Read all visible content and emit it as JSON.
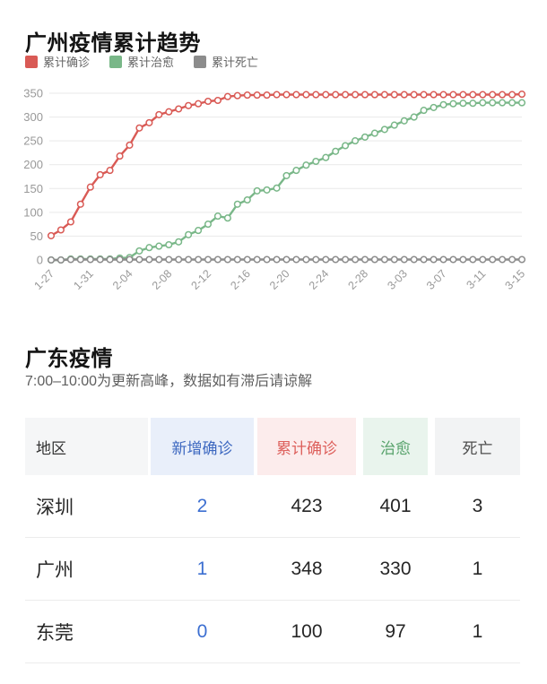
{
  "trend_section": {
    "title": "广州疫情累计趋势",
    "legend": [
      {
        "label": "累计确诊",
        "color": "#d95a55"
      },
      {
        "label": "累计治愈",
        "color": "#79b788"
      },
      {
        "label": "累计死亡",
        "color": "#8c8c8c"
      }
    ]
  },
  "chart_data": {
    "type": "line",
    "title": "广州疫情累计趋势",
    "marker": "hollow-circle",
    "grid": true,
    "legend_position": "top-left",
    "ylim": [
      0,
      350
    ],
    "y_ticks": [
      0,
      50,
      100,
      150,
      200,
      250,
      300,
      350
    ],
    "x_tick_every": 4,
    "x": [
      "1-27",
      "1-28",
      "1-29",
      "1-30",
      "1-31",
      "2-01",
      "2-02",
      "2-03",
      "2-04",
      "2-05",
      "2-06",
      "2-07",
      "2-08",
      "2-09",
      "2-10",
      "2-11",
      "2-12",
      "2-13",
      "2-14",
      "2-15",
      "2-16",
      "2-17",
      "2-18",
      "2-19",
      "2-20",
      "2-21",
      "2-22",
      "2-23",
      "2-24",
      "2-25",
      "2-26",
      "2-27",
      "2-28",
      "2-29",
      "3-01",
      "3-02",
      "3-03",
      "3-04",
      "3-05",
      "3-06",
      "3-07",
      "3-08",
      "3-09",
      "3-10",
      "3-11",
      "3-12",
      "3-13",
      "3-14",
      "3-15"
    ],
    "series": [
      {
        "name": "累计确诊",
        "color": "#d95a55",
        "values": [
          51,
          63,
          80,
          117,
          153,
          179,
          188,
          218,
          241,
          277,
          288,
          305,
          311,
          317,
          324,
          328,
          333,
          335,
          343,
          345,
          346,
          346,
          346,
          347,
          347,
          347,
          347,
          347,
          347,
          347,
          347,
          347,
          347,
          347,
          347,
          347,
          347,
          347,
          347,
          347,
          347,
          347,
          347,
          347,
          347,
          347,
          347,
          347,
          348
        ]
      },
      {
        "name": "累计治愈",
        "color": "#79b788",
        "values": [
          0,
          0,
          2,
          2,
          2,
          2,
          2,
          4,
          5,
          19,
          26,
          29,
          32,
          38,
          53,
          62,
          75,
          92,
          88,
          117,
          126,
          145,
          147,
          151,
          177,
          188,
          199,
          207,
          215,
          228,
          240,
          250,
          258,
          266,
          274,
          283,
          292,
          300,
          314,
          320,
          326,
          328,
          329,
          329,
          330,
          330,
          330,
          330,
          330
        ]
      },
      {
        "name": "累计死亡",
        "color": "#8c8c8c",
        "values": [
          0,
          0,
          1,
          1,
          1,
          1,
          1,
          1,
          1,
          1,
          1,
          1,
          1,
          1,
          1,
          1,
          1,
          1,
          1,
          1,
          1,
          1,
          1,
          1,
          1,
          1,
          1,
          1,
          1,
          1,
          1,
          1,
          1,
          1,
          1,
          1,
          1,
          1,
          1,
          1,
          1,
          1,
          1,
          1,
          1,
          1,
          1,
          1,
          1
        ]
      }
    ],
    "axis_text_color": "#999999",
    "gridline_color": "#e9e9e9"
  },
  "province_section": {
    "title": "广东疫情",
    "subtitle": "7:00–10:00为更新高峰，数据如有滞后请谅解",
    "table": {
      "columns": [
        {
          "label": "地区",
          "text_color": "#333333",
          "bg": "#f5f6f7"
        },
        {
          "label": "新增确诊",
          "text_color": "#3d68c0",
          "bg": "#e9effa"
        },
        {
          "label": "累计确诊",
          "text_color": "#dd5f5b",
          "bg": "#fcecec"
        },
        {
          "label": "治愈",
          "text_color": "#57a26b",
          "bg": "#e9f4ed"
        },
        {
          "label": "死亡",
          "text_color": "#4d4d4d",
          "bg": "#f2f3f4"
        }
      ],
      "new_confirmed_color": "#3c6fd1",
      "rows": [
        {
          "region": "深圳",
          "new_confirmed": "2",
          "total_confirmed": "423",
          "cured": "401",
          "deaths": "3"
        },
        {
          "region": "广州",
          "new_confirmed": "1",
          "total_confirmed": "348",
          "cured": "330",
          "deaths": "1"
        },
        {
          "region": "东莞",
          "new_confirmed": "0",
          "total_confirmed": "100",
          "cured": "97",
          "deaths": "1"
        }
      ]
    }
  }
}
